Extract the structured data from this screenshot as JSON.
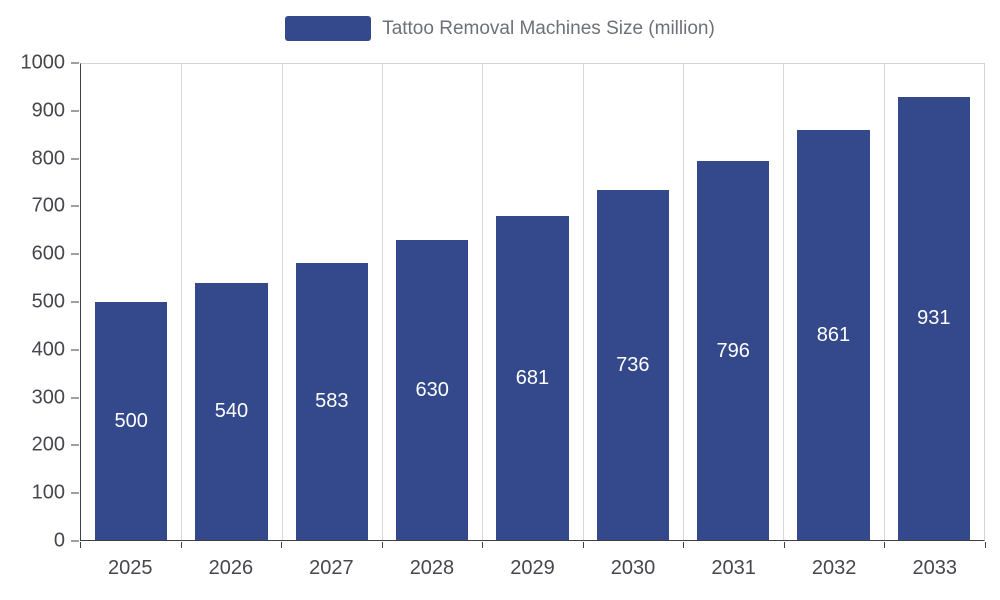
{
  "legend": {
    "label": "Tattoo Removal Machines Size (million)",
    "swatch_color": "#34498b"
  },
  "chart_data": {
    "type": "bar",
    "title": "Tattoo Removal Machines Size (million)",
    "categories": [
      "2025",
      "2026",
      "2027",
      "2028",
      "2029",
      "2030",
      "2031",
      "2032",
      "2033"
    ],
    "values": [
      500,
      540,
      583,
      630,
      681,
      736,
      796,
      861,
      931
    ],
    "xlabel": "",
    "ylabel": "",
    "ylim": [
      0,
      1000
    ],
    "yticks": [
      0,
      100,
      200,
      300,
      400,
      500,
      600,
      700,
      800,
      900,
      1000
    ],
    "bar_color": "#34498b",
    "value_label_color": "#ffffff",
    "axis_text_color": "#45474d",
    "grid": "vertical-category-split-lines",
    "legend_position": "top-center",
    "value_labels": "inside-center"
  }
}
